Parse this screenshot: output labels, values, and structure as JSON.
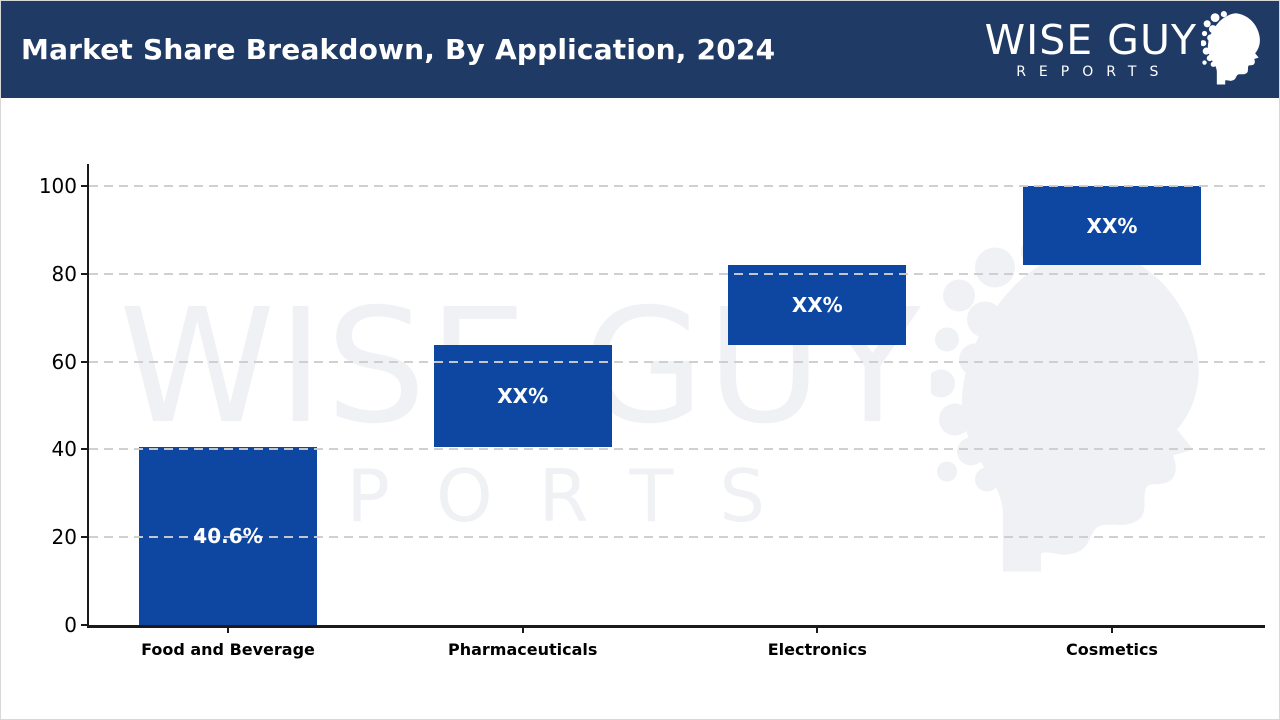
{
  "header": {
    "title": "Market Share Breakdown, By Application, 2024",
    "background_color": "#203a66",
    "logo": {
      "brand_line1": "WISE GUY",
      "brand_line2": "REPORTS"
    }
  },
  "watermark": {
    "line1": "WISE GUY",
    "line2": "REPORTS"
  },
  "chart_data": {
    "type": "bar",
    "subtype": "waterfall",
    "title": "Market Share Breakdown, By Application, 2024",
    "categories": [
      "Food and Beverage",
      "Pharmaceuticals",
      "Electronics",
      "Cosmetics"
    ],
    "segments": [
      {
        "category": "Food and Beverage",
        "start": 0,
        "end": 40.6,
        "label": "40.6%"
      },
      {
        "category": "Pharmaceuticals",
        "start": 40.6,
        "end": 63.8,
        "label": "XX%"
      },
      {
        "category": "Electronics",
        "start": 63.8,
        "end": 82.0,
        "label": "XX%"
      },
      {
        "category": "Cosmetics",
        "start": 82.0,
        "end": 100,
        "label": "XX%"
      }
    ],
    "values_pct": [
      40.6,
      23.2,
      18.2,
      18.0
    ],
    "yticks": [
      0,
      20,
      40,
      60,
      80,
      100
    ],
    "ylim": [
      0,
      105
    ],
    "xlabel": "",
    "ylabel": "",
    "bar_color": "#0d47a1",
    "bar_label_color": "#ffffff",
    "grid": {
      "horizontal": true,
      "style": "dashed",
      "color": "#d4d4d4"
    },
    "legend": null
  }
}
